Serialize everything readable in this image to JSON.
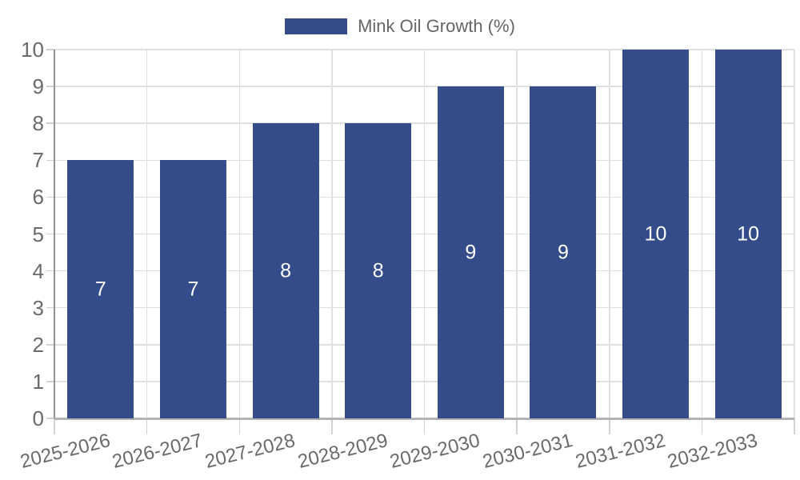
{
  "legend": {
    "items": [
      {
        "label": "Mink Oil Growth (%)"
      }
    ]
  },
  "chart_data": {
    "type": "bar",
    "title": "",
    "xlabel": "",
    "ylabel": "",
    "categories": [
      "2025-2026",
      "2026-2027",
      "2027-2028",
      "2028-2029",
      "2029-2030",
      "2030-2031",
      "2031-2032",
      "2032-2033"
    ],
    "series": [
      {
        "name": "Mink Oil Growth (%)",
        "values": [
          7,
          7,
          8,
          8,
          9,
          9,
          10,
          10
        ]
      }
    ],
    "data_labels": [
      "7",
      "7",
      "8",
      "8",
      "9",
      "9",
      "10",
      "10"
    ],
    "ylim": [
      0,
      10
    ],
    "yticks": [
      0,
      1,
      2,
      3,
      4,
      5,
      6,
      7,
      8,
      9,
      10
    ],
    "grid": true,
    "legend_position": "top-center",
    "data_label_position": "inside-center",
    "colors": {
      "bar": "#354c8a",
      "grid": "#e0e0e0",
      "axis_y": "#919191",
      "axis_x": "#b3b3b3",
      "tick": "#d2d2d2",
      "tick_text": "#6a6a6a",
      "legend_text": "#666666",
      "data_label": "#ffffff",
      "background": "#ffffff"
    }
  }
}
